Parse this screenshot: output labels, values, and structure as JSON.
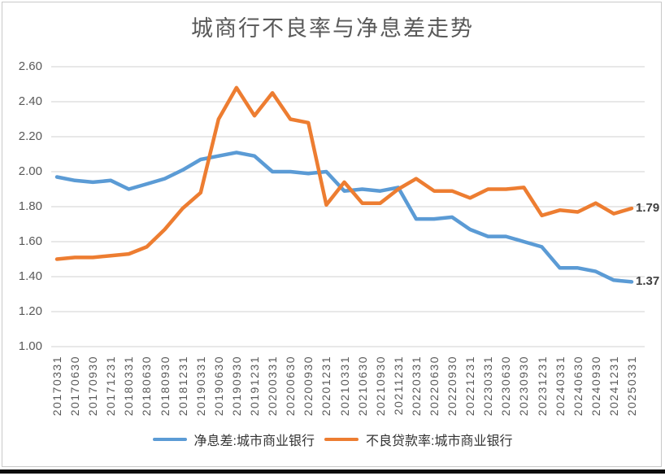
{
  "chart_data": {
    "type": "line",
    "title": "城商行不良率与净息差走势",
    "categories": [
      "20170331",
      "20170630",
      "20170930",
      "20171231",
      "20180331",
      "20180630",
      "20180930",
      "20181231",
      "20190331",
      "20190630",
      "20190930",
      "20191231",
      "20200331",
      "20200630",
      "20200930",
      "20201231",
      "20210331",
      "20210630",
      "20210930",
      "20211231",
      "20220331",
      "20220630",
      "20220930",
      "20221231",
      "20230331",
      "20230630",
      "20230930",
      "20231231",
      "20240331",
      "20240630",
      "20240930",
      "20241231",
      "20250331"
    ],
    "series": [
      {
        "name": "净息差:城市商业银行",
        "color": "#5B9BD5",
        "values": [
          1.97,
          1.95,
          1.94,
          1.95,
          1.9,
          1.93,
          1.96,
          2.01,
          2.07,
          2.09,
          2.11,
          2.09,
          2.0,
          2.0,
          1.99,
          2.0,
          1.89,
          1.9,
          1.89,
          1.91,
          1.73,
          1.73,
          1.74,
          1.67,
          1.63,
          1.63,
          1.6,
          1.57,
          1.45,
          1.45,
          1.43,
          1.38,
          1.37
        ]
      },
      {
        "name": "不良贷款率:城市商业银行",
        "color": "#ED7D31",
        "values": [
          1.5,
          1.51,
          1.51,
          1.52,
          1.53,
          1.57,
          1.67,
          1.79,
          1.88,
          2.3,
          2.48,
          2.32,
          2.45,
          2.3,
          2.28,
          1.81,
          1.94,
          1.82,
          1.82,
          1.9,
          1.96,
          1.89,
          1.89,
          1.85,
          1.9,
          1.9,
          1.91,
          1.75,
          1.78,
          1.77,
          1.82,
          1.76,
          1.79
        ]
      }
    ],
    "xlabel": "",
    "ylabel": "",
    "ylim": [
      1.0,
      2.6
    ],
    "ytick_step": 0.2,
    "yticks": [
      "2.60",
      "2.40",
      "2.20",
      "2.00",
      "1.80",
      "1.60",
      "1.40",
      "1.20",
      "1.00"
    ],
    "grid": "horizontal",
    "legend_position": "bottom",
    "annotations": [
      {
        "text": "1.79",
        "series_index": 1,
        "position": "last-point"
      },
      {
        "text": "1.37",
        "series_index": 0,
        "position": "last-point"
      }
    ],
    "colors": {
      "gridline": "#D9D9D9",
      "axis_label": "#595959",
      "title": "#595959",
      "annotation": "#404040"
    }
  }
}
